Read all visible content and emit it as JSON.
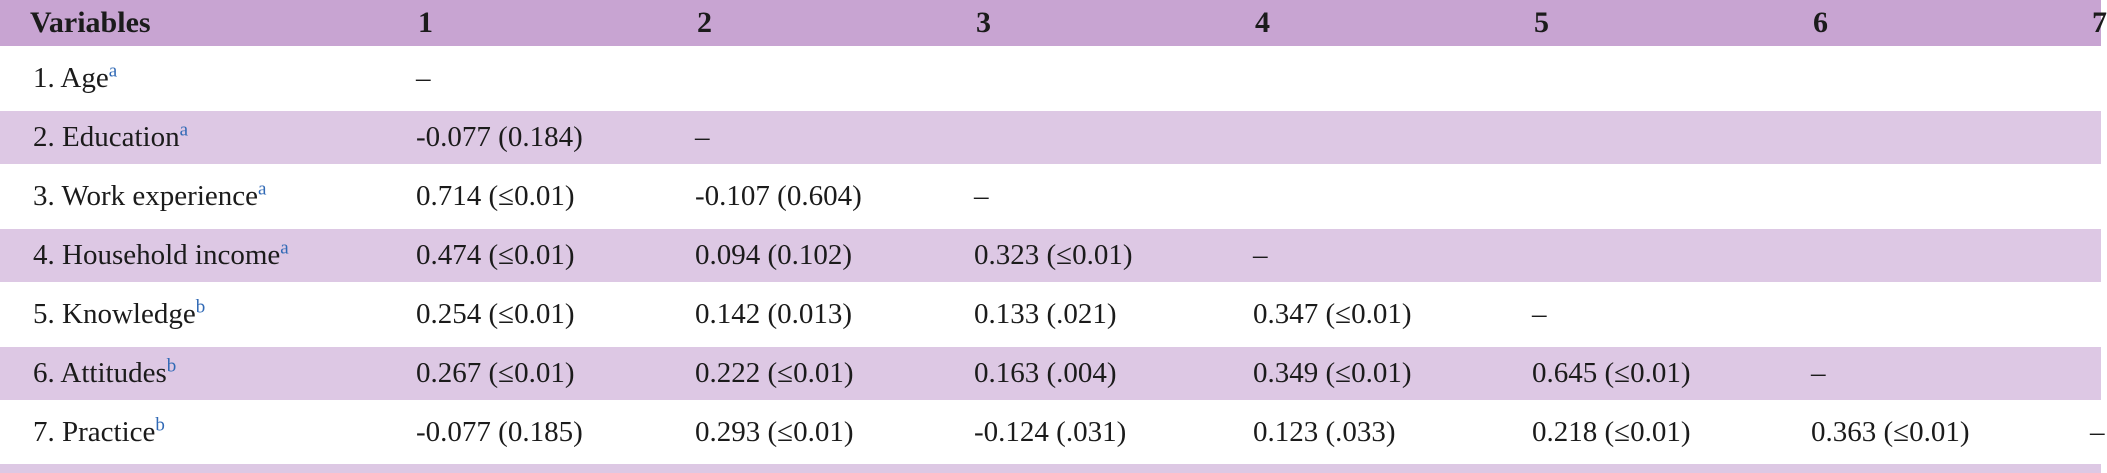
{
  "colors": {
    "header_bg": "#c8a4d2",
    "stripe_bg": "#ddc8e4",
    "text": "#1b1b1b",
    "superscript_blue": "#3069b5"
  },
  "table": {
    "columns": [
      "Variables",
      "1",
      "2",
      "3",
      "4",
      "5",
      "6",
      "7"
    ],
    "rows": [
      {
        "label": "1. Age",
        "sup": "a",
        "cells": [
          "–",
          "",
          "",
          "",
          "",
          "",
          ""
        ]
      },
      {
        "label": "2. Education",
        "sup": "a",
        "cells": [
          "-0.077 (0.184)",
          "–",
          "",
          "",
          "",
          "",
          ""
        ]
      },
      {
        "label": "3. Work experience",
        "sup": "a",
        "cells": [
          "0.714 (≤0.01)",
          "-0.107 (0.604)",
          "–",
          "",
          "",
          "",
          ""
        ]
      },
      {
        "label": "4. Household income",
        "sup": "a",
        "cells": [
          "0.474 (≤0.01)",
          "0.094 (0.102)",
          "0.323 (≤0.01)",
          "–",
          "",
          "",
          ""
        ]
      },
      {
        "label": "5. Knowledge",
        "sup": "b",
        "cells": [
          "0.254 (≤0.01)",
          "0.142 (0.013)",
          "0.133 (.021)",
          "0.347 (≤0.01)",
          "–",
          "",
          ""
        ]
      },
      {
        "label": "6. Attitudes",
        "sup": "b",
        "cells": [
          "0.267 (≤0.01)",
          "0.222 (≤0.01)",
          "0.163 (.004)",
          "0.349 (≤0.01)",
          "0.645 (≤0.01)",
          "–",
          ""
        ]
      },
      {
        "label": "7. Practice",
        "sup": "b",
        "cells": [
          "-0.077 (0.185)",
          "0.293 (≤0.01)",
          "-0.124 (.031)",
          "0.123 (.033)",
          "0.218 (≤0.01)",
          "0.363 (≤0.01)",
          "–"
        ]
      }
    ]
  }
}
